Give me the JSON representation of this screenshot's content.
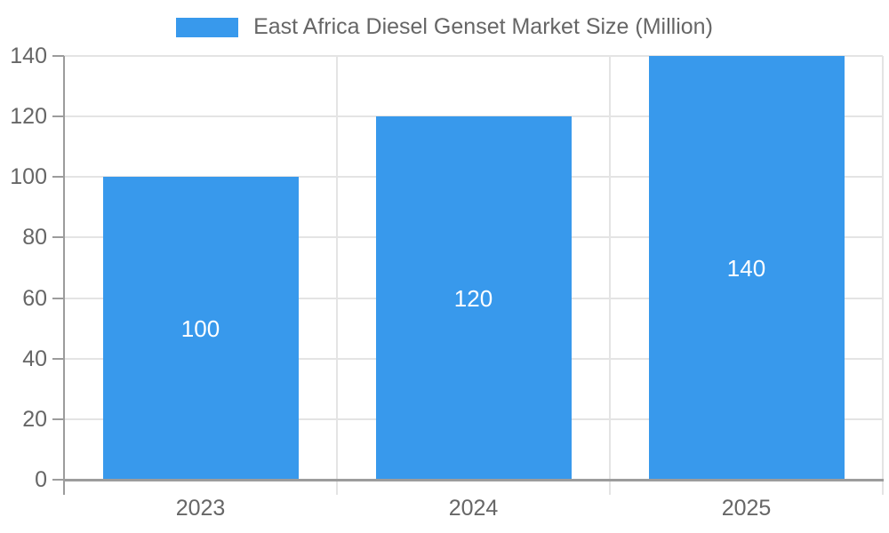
{
  "chart_data": {
    "type": "bar",
    "title": "East Africa Diesel Genset Market Size (Million)",
    "legend_label": "East Africa Diesel Genset Market Size (Million)",
    "legend_position": "top",
    "categories": [
      "2023",
      "2024",
      "2025"
    ],
    "series": [
      {
        "name": "East Africa Diesel Genset Market Size (Million)",
        "values": [
          100,
          120,
          140
        ]
      }
    ],
    "values": [
      100,
      120,
      140
    ],
    "data_labels": [
      "100",
      "120",
      "140"
    ],
    "yticks": [
      0,
      20,
      40,
      60,
      80,
      100,
      120,
      140
    ],
    "ylim": [
      0,
      140
    ],
    "xlabel": "",
    "ylabel": "",
    "grid": true
  },
  "colors": {
    "bar": "#3899ec",
    "grid": "#e4e4e4",
    "axis": "#9c9c9c",
    "text": "#666666",
    "value_label": "#ffffff",
    "background": "#ffffff"
  }
}
